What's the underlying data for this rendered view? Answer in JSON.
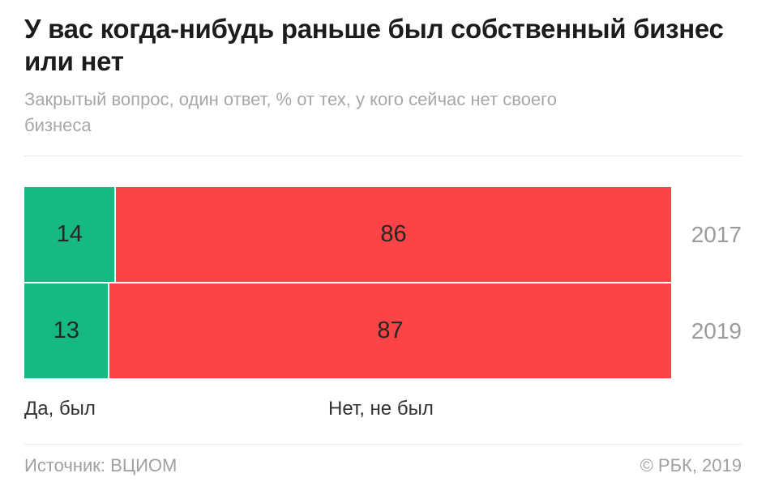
{
  "header": {
    "title": "У вас когда-нибудь раньше был собственный бизнес или нет",
    "subtitle": "Закрытый вопрос, один ответ, % от тех, у кого сейчас нет своего\nбизнеса"
  },
  "chart_data": {
    "type": "bar",
    "orientation": "horizontal",
    "stacked": true,
    "title": "У вас когда-нибудь раньше был собственный бизнес или нет",
    "subtitle": "Закрытый вопрос, один ответ, % от тех, у кого сейчас нет своего бизнеса",
    "categories": [
      "2017",
      "2019"
    ],
    "series": [
      {
        "key": "yes",
        "name": "Да, был",
        "color": "#16b981",
        "values": [
          14,
          13
        ]
      },
      {
        "key": "no",
        "name": "Нет, не был",
        "color": "#fc4345",
        "values": [
          86,
          87
        ]
      }
    ],
    "value_unit": "%",
    "xlim": [
      0,
      100
    ],
    "grid": false,
    "legend_position": "bottom",
    "category_label_position": "right"
  },
  "footer": {
    "source": "Источник: ВЦИОМ",
    "copyright": "© РБК, 2019"
  },
  "colors": {
    "background": "#ffffff",
    "title_text": "#1c1c1c",
    "subtitle_text": "#a7a7a7",
    "bar_value_text": "#262626",
    "category_label_text": "#9b9b9b",
    "legend_text": "#333333",
    "footer_text": "#a0a0a0",
    "divider": "#e9e9e9"
  }
}
